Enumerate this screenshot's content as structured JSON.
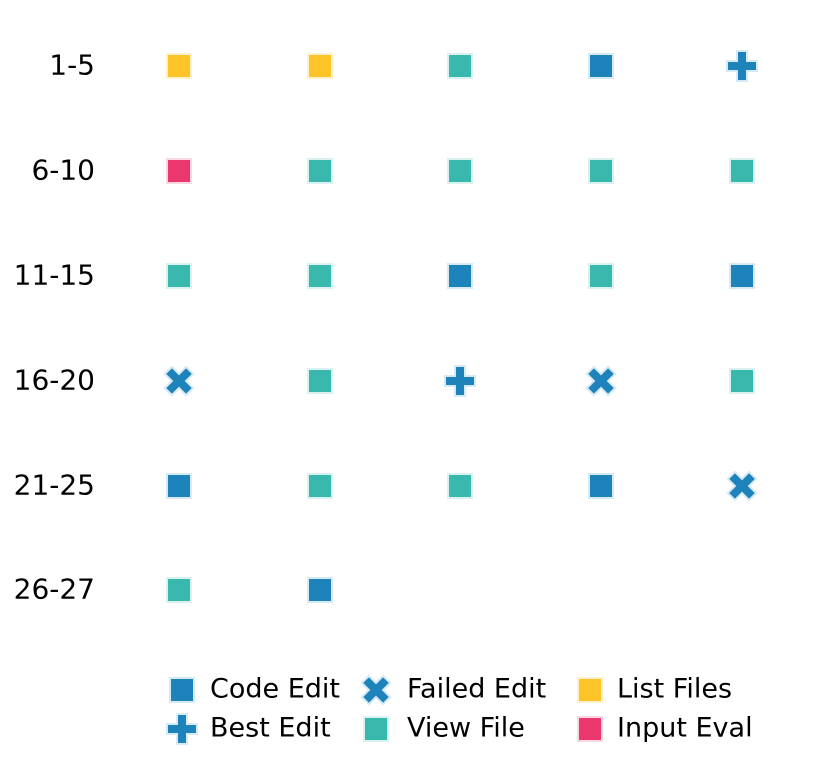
{
  "chart_data": {
    "type": "scatter",
    "description": "Categorical action-timeline matrix: each row is a range of step numbers, each cell a marker for the action type taken at that step",
    "ylabel": "",
    "xlabel": "",
    "grid": false,
    "legend_position": "bottom",
    "background": "#ffffff",
    "text_color": "#000000",
    "rows": [
      {
        "label": "1-5",
        "actions": [
          "list_files",
          "list_files",
          "view_file",
          "code_edit",
          "best_edit"
        ]
      },
      {
        "label": "6-10",
        "actions": [
          "input_eval",
          "view_file",
          "view_file",
          "view_file",
          "view_file"
        ]
      },
      {
        "label": "11-15",
        "actions": [
          "view_file",
          "view_file",
          "code_edit",
          "view_file",
          "code_edit"
        ]
      },
      {
        "label": "16-20",
        "actions": [
          "failed_edit",
          "view_file",
          "best_edit",
          "failed_edit",
          "view_file"
        ]
      },
      {
        "label": "21-25",
        "actions": [
          "code_edit",
          "view_file",
          "view_file",
          "code_edit",
          "failed_edit"
        ]
      },
      {
        "label": "26-27",
        "actions": [
          "view_file",
          "code_edit",
          null,
          null,
          null
        ]
      }
    ],
    "markers": {
      "code_edit": {
        "shape": "square",
        "color": "#1f83bb",
        "edge": "#d6eaf5"
      },
      "failed_edit": {
        "shape": "x",
        "color": "#1f83bb",
        "edge": "#d6eaf5"
      },
      "list_files": {
        "shape": "square",
        "color": "#fdc428",
        "edge": "#fdf0cb"
      },
      "best_edit": {
        "shape": "plus",
        "color": "#1f83bb",
        "edge": "#d6eaf5"
      },
      "view_file": {
        "shape": "square",
        "color": "#39b8ad",
        "edge": "#d9f2ef"
      },
      "input_eval": {
        "shape": "square",
        "color": "#ea386f",
        "edge": "#fbd7e3"
      }
    },
    "legend": [
      {
        "key": "code_edit",
        "label": "Code Edit"
      },
      {
        "key": "failed_edit",
        "label": "Failed Edit"
      },
      {
        "key": "list_files",
        "label": "List Files"
      },
      {
        "key": "best_edit",
        "label": "Best Edit"
      },
      {
        "key": "view_file",
        "label": "View File"
      },
      {
        "key": "input_eval",
        "label": "Input Eval"
      }
    ]
  }
}
